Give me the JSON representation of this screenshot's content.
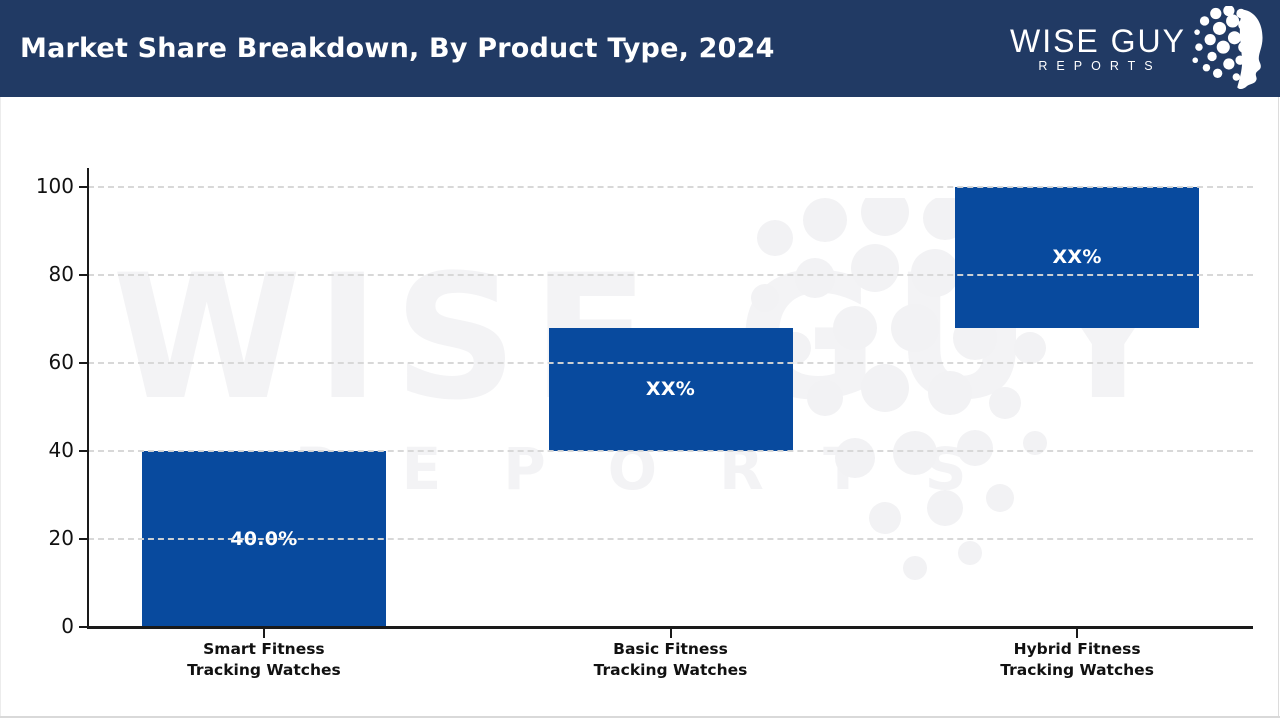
{
  "header": {
    "title": "Market Share Breakdown, By Product Type, 2024",
    "logo": {
      "line1": "WISE GUY",
      "line2": "REPORTS"
    }
  },
  "watermark": {
    "line1": "WISE GUY",
    "line2": "REPORTS"
  },
  "colors": {
    "header_bg": "#213A64",
    "bar": "#084A9E",
    "grid": "#D6D6D6",
    "axis": "#1A1A1A",
    "bar_label": "#FFFFFF",
    "watermark": "#F3F3F5"
  },
  "chart_data": {
    "type": "bar",
    "subtype": "floating-segment (waterfall) bars",
    "title": "Market Share Breakdown, By Product Type, 2024",
    "categories": [
      "Smart Fitness Tracking Watches",
      "Basic Fitness Tracking Watches",
      "Hybrid Fitness Tracking Watches"
    ],
    "category_label_lines": [
      [
        "Smart Fitness",
        "Tracking Watches"
      ],
      [
        "Basic Fitness",
        "Tracking Watches"
      ],
      [
        "Hybrid Fitness",
        "Tracking Watches"
      ]
    ],
    "segments": [
      {
        "category": "Smart Fitness Tracking Watches",
        "start": 0,
        "end": 40,
        "value": 40,
        "label": "40.0%"
      },
      {
        "category": "Basic Fitness Tracking Watches",
        "start": 40,
        "end": 68,
        "value": 28,
        "label": "XX%"
      },
      {
        "category": "Hybrid Fitness Tracking Watches",
        "start": 68,
        "end": 100,
        "value": 32,
        "label": "XX%"
      }
    ],
    "y_ticks": [
      0,
      20,
      40,
      60,
      80,
      100
    ],
    "ylim": [
      0,
      100
    ],
    "xlabel": "",
    "ylabel": "",
    "grid": "horizontal dashed gridlines at each y tick, drawn over bars",
    "legend": null
  }
}
